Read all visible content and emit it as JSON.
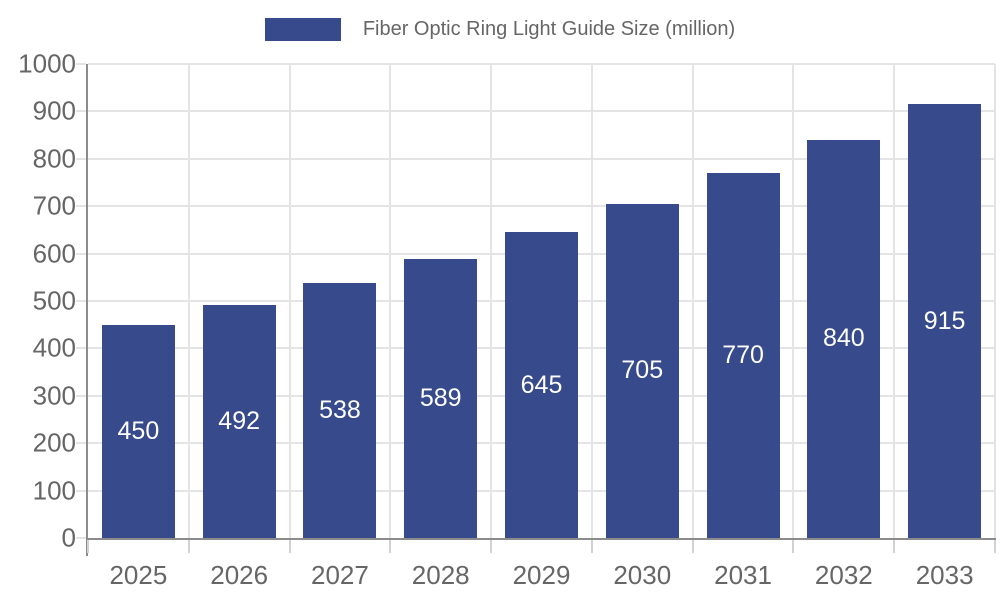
{
  "chart_data": {
    "type": "bar",
    "title": "",
    "series_name": "Fiber Optic Ring Light Guide Size (million)",
    "categories": [
      "2025",
      "2026",
      "2027",
      "2028",
      "2029",
      "2030",
      "2031",
      "2032",
      "2033"
    ],
    "values": [
      450,
      492,
      538,
      589,
      645,
      705,
      770,
      840,
      915
    ],
    "xlabel": "",
    "ylabel": "",
    "ylim": [
      0,
      1000
    ],
    "ytick_step": 100,
    "yticks": [
      0,
      100,
      200,
      300,
      400,
      500,
      600,
      700,
      800,
      900,
      1000
    ],
    "grid": true,
    "legend_position": "top-center",
    "value_labels": "inside-center",
    "colors": {
      "bar": "#374A8B",
      "value_label": "#FFFFFF",
      "axis_text": "#666666",
      "grid_line": "#E4E4E4",
      "axis_line": "#8C8C8C",
      "tick_line": "#D2D2D2",
      "background": "#FFFFFF"
    }
  }
}
